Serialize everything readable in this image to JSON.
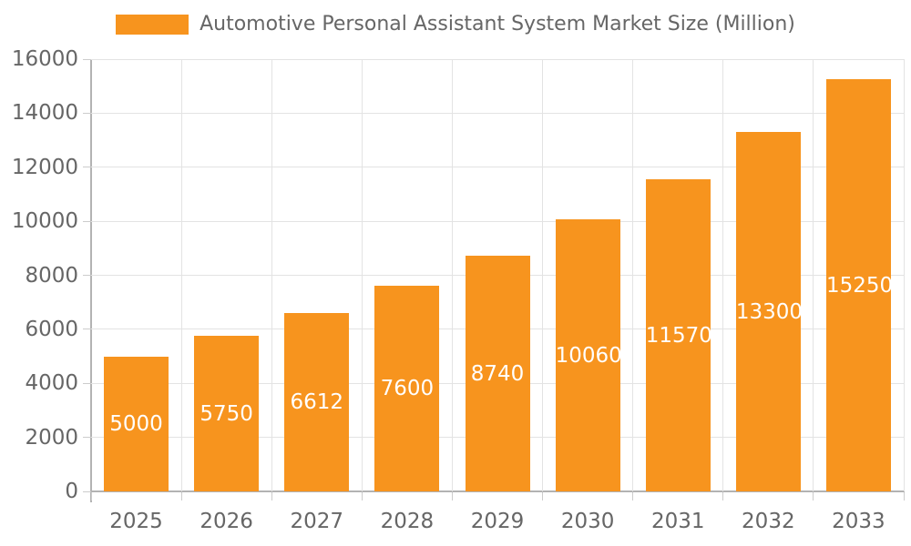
{
  "chart_data": {
    "type": "bar",
    "title": "Automotive Personal Assistant System Market Size (Million)",
    "categories": [
      "2025",
      "2026",
      "2027",
      "2028",
      "2029",
      "2030",
      "2031",
      "2032",
      "2033"
    ],
    "values": [
      5000,
      5750,
      6612,
      7600,
      8740,
      10060,
      11570,
      13300,
      15250
    ],
    "xlabel": "",
    "ylabel": "",
    "ylim": [
      0,
      16000
    ],
    "yticks": [
      0,
      2000,
      4000,
      6000,
      8000,
      10000,
      12000,
      14000,
      16000
    ],
    "grid": true,
    "legend_position": "top",
    "bar_color": "#f7941e",
    "bar_label_color": "#ffffff",
    "axis_text_color": "#666666",
    "gridline_color": "#e3e3e3",
    "axis_line_color": "#b3b3b3",
    "tick_color": "#cccccc"
  }
}
